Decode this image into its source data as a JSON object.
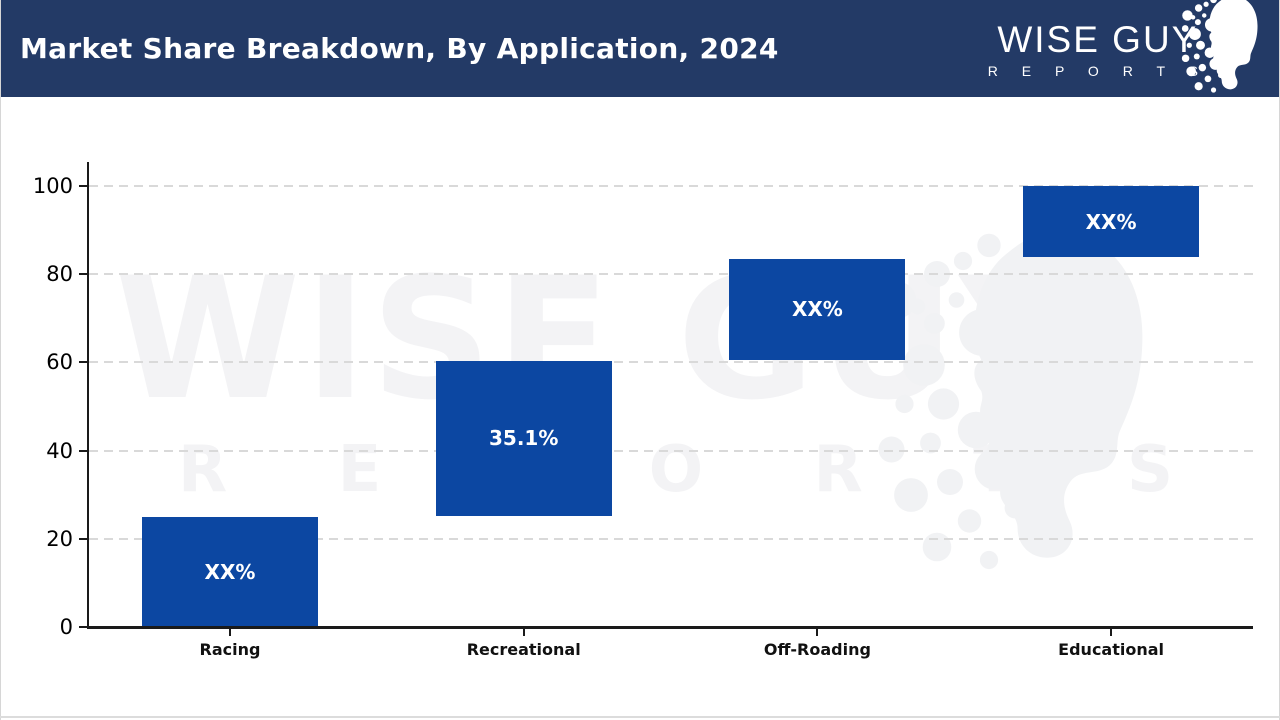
{
  "header": {
    "title": "Market Share Breakdown, By Application, 2024",
    "bg_color": "#233a66"
  },
  "logo": {
    "line1": "WISE GUY",
    "line2": "R E P O R T S"
  },
  "watermark": {
    "line1": "WISE GUY",
    "line2": "R E P O R T S"
  },
  "chart_data": {
    "type": "bar",
    "subtype": "waterfall",
    "title": "Market Share Breakdown, By Application, 2024",
    "categories": [
      "Racing",
      "Recreational",
      "Off-Roading",
      "Educational"
    ],
    "segments": [
      {
        "category": "Racing",
        "start": 0,
        "end": 24.9,
        "label": "XX%"
      },
      {
        "category": "Recreational",
        "start": 25.2,
        "end": 60.3,
        "label": "35.1%"
      },
      {
        "category": "Off-Roading",
        "start": 60.5,
        "end": 83.5,
        "label": "XX%"
      },
      {
        "category": "Educational",
        "start": 83.8,
        "end": 100,
        "label": "XX%"
      }
    ],
    "yticks": [
      0,
      20,
      40,
      60,
      80,
      100
    ],
    "ylim": [
      0,
      100
    ],
    "xlabel": "",
    "ylabel": "",
    "grid": "horizontal-dashed",
    "legend": "none",
    "bar_color": "#0c47a2",
    "bar_label_color": "#ffffff",
    "grid_color": "#d9d9d9",
    "axis_color": "#1a1a1a"
  }
}
